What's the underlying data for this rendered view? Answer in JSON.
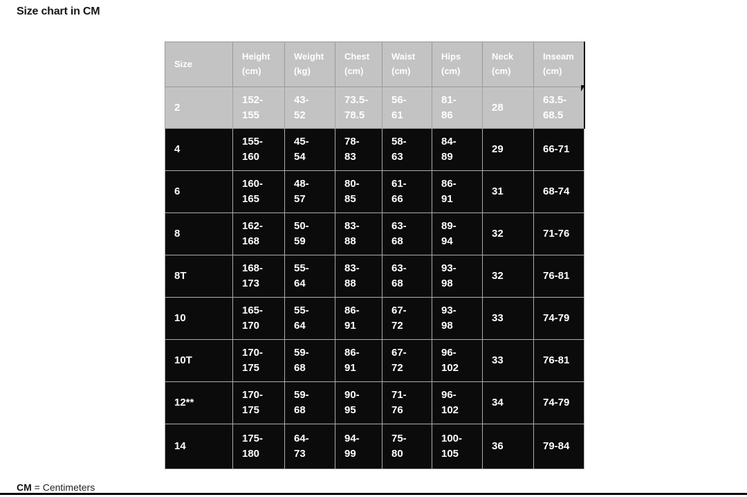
{
  "page": {
    "title": "Size chart in CM",
    "footnote": {
      "abbr": "CM",
      "rest": " = Centimeters"
    }
  },
  "colors": {
    "highlight_bg": "#c3c3c3",
    "row_bg": "#0b0b0b",
    "table_text": "#ffffff",
    "page_text": "#161616",
    "bottom_rule": "#000000"
  },
  "table": {
    "columns": [
      {
        "key": "size",
        "label": "Size"
      },
      {
        "key": "height",
        "label": "Height\n(cm)"
      },
      {
        "key": "weight",
        "label": "Weight\n(kg)"
      },
      {
        "key": "chest",
        "label": "Chest\n(cm)"
      },
      {
        "key": "waist",
        "label": "Waist\n(cm)"
      },
      {
        "key": "hips",
        "label": "Hips\n(cm)"
      },
      {
        "key": "neck",
        "label": "Neck\n(cm)"
      },
      {
        "key": "inseam",
        "label": "Inseam\n(cm)"
      }
    ],
    "rows": [
      {
        "highlighted": true,
        "values": {
          "size": "2",
          "height": "152-\n155",
          "weight": "43-\n52",
          "chest": "73.5-\n78.5",
          "waist": "56-\n61",
          "hips": "81-\n86",
          "neck": "28",
          "inseam": "63.5-\n68.5"
        }
      },
      {
        "highlighted": false,
        "values": {
          "size": "4",
          "height": "155-\n160",
          "weight": "45-\n54",
          "chest": "78-\n83",
          "waist": "58-\n63",
          "hips": "84-\n89",
          "neck": "29",
          "inseam": "66-71"
        }
      },
      {
        "highlighted": false,
        "values": {
          "size": "6",
          "height": "160-\n165",
          "weight": "48-\n57",
          "chest": "80-\n85",
          "waist": "61-\n66",
          "hips": "86-\n91",
          "neck": "31",
          "inseam": "68-74"
        }
      },
      {
        "highlighted": false,
        "values": {
          "size": "8",
          "height": "162-\n168",
          "weight": "50-\n59",
          "chest": "83-\n88",
          "waist": "63-\n68",
          "hips": "89-\n94",
          "neck": "32",
          "inseam": "71-76"
        }
      },
      {
        "highlighted": false,
        "values": {
          "size": "8T",
          "height": "168-\n173",
          "weight": "55-\n64",
          "chest": "83-\n88",
          "waist": "63-\n68",
          "hips": "93-\n98",
          "neck": "32",
          "inseam": "76-81"
        }
      },
      {
        "highlighted": false,
        "values": {
          "size": "10",
          "height": "165-\n170",
          "weight": "55-\n64",
          "chest": "86-\n91",
          "waist": "67-\n72",
          "hips": "93-\n98",
          "neck": "33",
          "inseam": "74-79"
        }
      },
      {
        "highlighted": false,
        "values": {
          "size": "10T",
          "height": "170-\n175",
          "weight": "59-\n68",
          "chest": "86-\n91",
          "waist": "67-\n72",
          "hips": "96-\n102",
          "neck": "33",
          "inseam": "76-81"
        }
      },
      {
        "highlighted": false,
        "values": {
          "size": "12**",
          "height": "170-\n175",
          "weight": "59-\n68",
          "chest": "90-\n95",
          "waist": "71-\n76",
          "hips": "96-\n102",
          "neck": "34",
          "inseam": "74-79"
        }
      },
      {
        "highlighted": false,
        "values": {
          "size": "14",
          "height": "175-\n180",
          "weight": "64-\n73",
          "chest": "94-\n99",
          "waist": "75-\n80",
          "hips": "100-\n105",
          "neck": "36",
          "inseam": "79-84"
        }
      }
    ]
  }
}
